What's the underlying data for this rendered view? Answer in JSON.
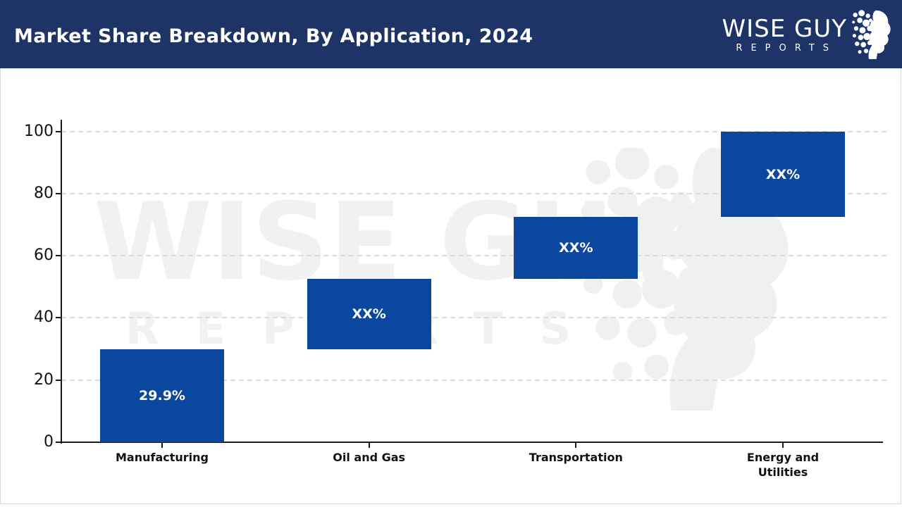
{
  "header": {
    "title": "Market Share Breakdown, By Application, 2024",
    "logo_line1": "WISE GUY",
    "logo_line2": "REPORTS",
    "bg_color": "#1e3466"
  },
  "watermark": {
    "line1": "WISE GUY",
    "line2": "REPORTS"
  },
  "chart_data": {
    "type": "bar",
    "subtype": "waterfall",
    "title": "Market Share Breakdown, By Application, 2024",
    "categories": [
      "Manufacturing",
      "Oil and Gas",
      "Transportation",
      "Energy and\nUtilities"
    ],
    "segments": [
      {
        "category": "Manufacturing",
        "start": 0,
        "end": 29.9,
        "label": "29.9%"
      },
      {
        "category": "Oil and Gas",
        "start": 29.9,
        "end": 52.6,
        "label": "XX%"
      },
      {
        "category": "Transportation",
        "start": 52.6,
        "end": 72.4,
        "label": "XX%"
      },
      {
        "category": "Energy and Utilities",
        "start": 72.4,
        "end": 100,
        "label": "XX%"
      }
    ],
    "y_ticks": [
      0,
      20,
      40,
      60,
      80,
      100
    ],
    "ylim": [
      0,
      103.8
    ],
    "xlabel": "",
    "ylabel": "",
    "bar_color": "#0c479f",
    "grid": true,
    "gridline_style": "dashed",
    "legend": false
  }
}
